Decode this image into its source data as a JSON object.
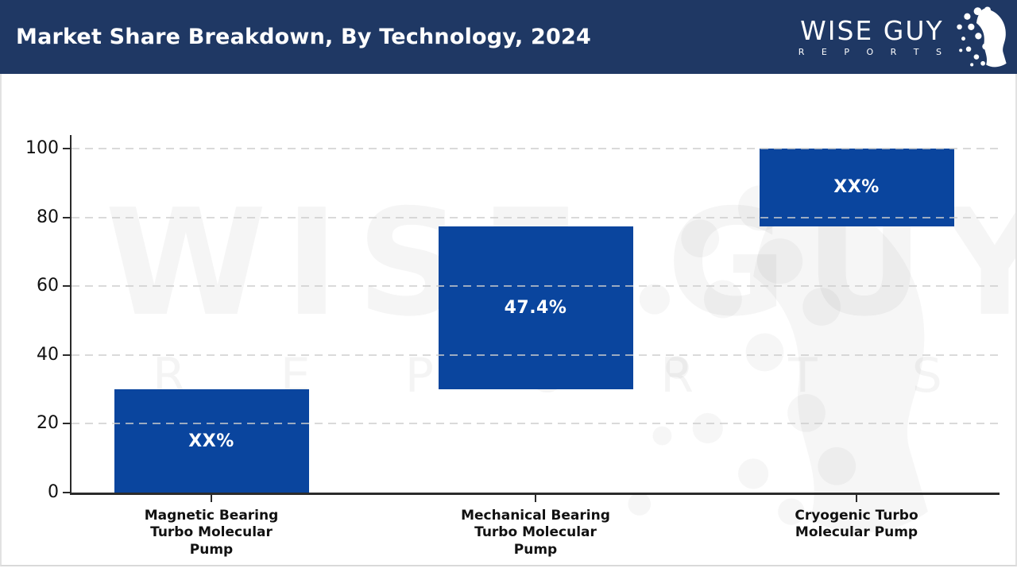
{
  "header": {
    "title": "Market Share Breakdown, By Technology, 2024",
    "bg_color": "#1f3864",
    "logo": {
      "name": "WISE GUY",
      "subtitle": "R E P O R T S"
    }
  },
  "watermark": {
    "line1": "WISE GUY",
    "line2": "R E P O R T S"
  },
  "chart_data": {
    "type": "bar",
    "subtype": "floating-waterfall",
    "title": "Market Share Breakdown, By Technology, 2024",
    "categories": [
      "Magnetic Bearing\nTurbo Molecular\nPump",
      "Mechanical Bearing\nTurbo Molecular\nPump",
      "Cryogenic Turbo\nMolecular Pump"
    ],
    "series": [
      {
        "name": "Market share (%)",
        "segments": [
          {
            "category": "Magnetic Bearing Turbo Molecular Pump",
            "start": 0,
            "end": 30,
            "value_est": 30,
            "value_label": "XX%"
          },
          {
            "category": "Mechanical Bearing Turbo Molecular Pump",
            "start": 30,
            "end": 77.4,
            "value_est": 47.4,
            "value_label": "47.4%"
          },
          {
            "category": "Cryogenic Turbo Molecular Pump",
            "start": 77.4,
            "end": 100,
            "value_est": 22.6,
            "value_label": "XX%"
          }
        ]
      }
    ],
    "ylim": [
      0,
      100
    ],
    "yticks": [
      0,
      20,
      40,
      60,
      80,
      100
    ],
    "grid": {
      "axis": "y",
      "style": "dashed",
      "color": "#d9d9d9",
      "above_bars": true
    },
    "legend": "none",
    "bar_color": "#0a459e",
    "bar_label_color": "#ffffff",
    "axis_color": "#2b2b2b"
  }
}
